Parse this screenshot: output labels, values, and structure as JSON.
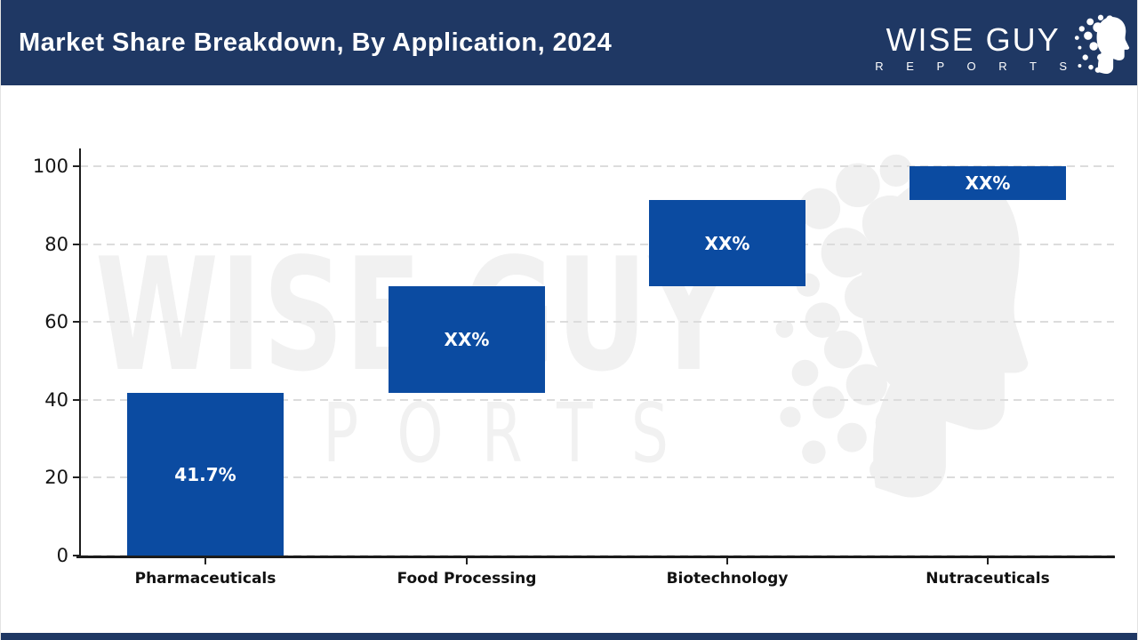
{
  "header": {
    "title": "Market Share Breakdown, By Application, 2024",
    "bg_color": "#1f3864",
    "logo": {
      "title": "WISE GUY",
      "subtitle": "R E P O R T S"
    }
  },
  "watermark": {
    "line1": "WISE GUY",
    "line2": "REPORTS"
  },
  "footer": {
    "bg_color": "#1f3864"
  },
  "chart_data": {
    "type": "bar",
    "subtype": "floating-waterfall",
    "title": "Market Share Breakdown, By Application, 2024",
    "categories": [
      "Pharmaceuticals",
      "Food Processing",
      "Biotechnology",
      "Nutraceuticals"
    ],
    "series": [
      {
        "name": "Market share (%)",
        "segments": [
          {
            "category": "Pharmaceuticals",
            "start": 0,
            "end": 41.7,
            "label": "41.7%"
          },
          {
            "category": "Food Processing",
            "start": 41.7,
            "end": 69.1,
            "label": "XX%"
          },
          {
            "category": "Biotechnology",
            "start": 69.1,
            "end": 91.3,
            "label": "XX%"
          },
          {
            "category": "Nutraceuticals",
            "start": 91.3,
            "end": 100,
            "label": "XX%"
          }
        ]
      }
    ],
    "bar_labels": [
      "41.7%",
      "XX%",
      "XX%",
      "XX%"
    ],
    "y_ticks": [
      0,
      20,
      40,
      60,
      80,
      100
    ],
    "ylim": [
      0,
      104
    ],
    "xlabel": "",
    "ylabel": "",
    "grid": "horizontal-dashed",
    "legend": "none",
    "bar_color": "#0b4ba1",
    "bar_label_color": "#ffffff",
    "gridline_color": "#dcdcdc"
  }
}
